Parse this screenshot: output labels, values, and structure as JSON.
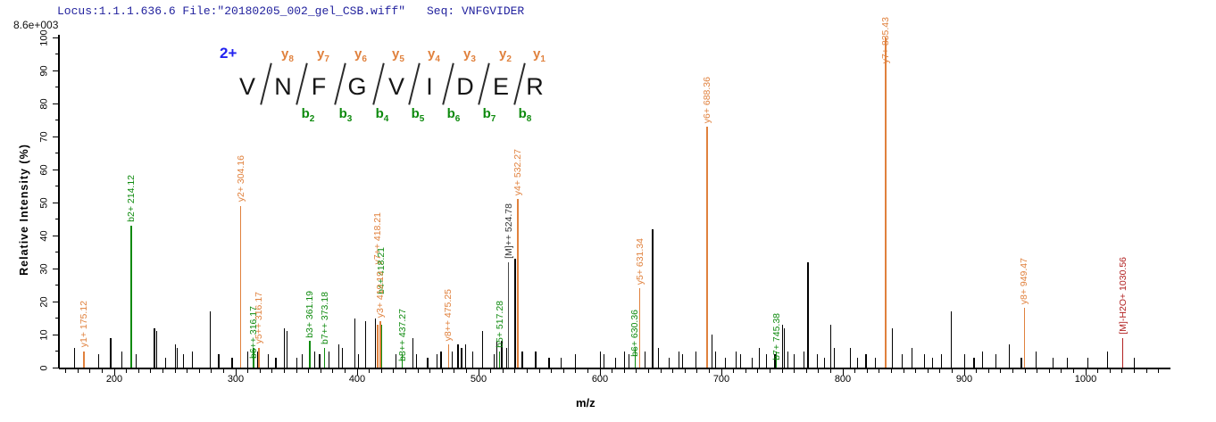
{
  "header": {
    "locus": "Locus:1.1.1.636.6 File:\"20180205_002_gel_CSB.wiff\"",
    "seq": "Seq: VNFGVIDER",
    "max_intensity": "8.6e+003"
  },
  "peptide": {
    "charge": "2+",
    "residues": [
      "V",
      "N",
      "F",
      "G",
      "V",
      "I",
      "D",
      "E",
      "R"
    ],
    "y_ions": [
      "y8",
      "y7",
      "y6",
      "y5",
      "y4",
      "y3",
      "y2",
      "y1"
    ],
    "b_ions": [
      "b2",
      "b3",
      "b4",
      "b5",
      "b6",
      "b7",
      "b8"
    ]
  },
  "axes": {
    "x_label": "m/z",
    "y_label": "Relative Intensity (%)",
    "x_major_ticks": [
      200,
      300,
      400,
      500,
      600,
      700,
      800,
      900,
      1000
    ],
    "x_minor_start": 160,
    "x_minor_end": 1060,
    "x_minor_step": 10,
    "y_major_step": 10,
    "y_minor_step": 5,
    "y_min": 0,
    "y_max": 100
  },
  "colors": {
    "y_ion": "#E0813D",
    "b_ion": "#0E8A0E",
    "precursor": "#4A4A4A",
    "precursor_label": "#333333",
    "precursor_loss": "#B22222",
    "peak": "#000000",
    "header_text": "#22229E",
    "charge_blue": "#2222F0",
    "residue": "#161616"
  },
  "chart_data": {
    "type": "bar",
    "xlabel": "m/z",
    "ylabel": "Relative Intensity (%)",
    "xlim": [
      155,
      1068
    ],
    "ylim": [
      0,
      100
    ],
    "base_peak_intensity": "8.6e+003",
    "precursor_charge": "2+",
    "sequence": "VNFGVIDER",
    "labeled_peaks": [
      {
        "mz": 175.12,
        "intensity": 5,
        "label": "y1+ 175.12",
        "ion": "y"
      },
      {
        "mz": 214.12,
        "intensity": 43,
        "label": "b2+ 214.12",
        "ion": "b"
      },
      {
        "mz": 304.16,
        "intensity": 49,
        "label": "y2+ 304.16",
        "ion": "y"
      },
      {
        "mz": 316.17,
        "intensity": 6,
        "label": "b6++ 316.17",
        "ion": "b",
        "dx": -2,
        "lift": -16
      },
      {
        "mz": 316.17,
        "intensity": 6,
        "label": "y5++ 316.17",
        "ion": "y",
        "dx": 4
      },
      {
        "mz": 361.19,
        "intensity": 8,
        "label": "b3+ 361.19",
        "ion": "b"
      },
      {
        "mz": 373.18,
        "intensity": 6,
        "label": "b7++ 373.18",
        "ion": "b"
      },
      {
        "mz": 418.21,
        "intensity": 13,
        "label": "y7++ 418.21",
        "ion": "y",
        "dx": -2,
        "lift": 64
      },
      {
        "mz": 418.21,
        "intensity": 13,
        "label": "b4+ 418.21",
        "ion": "b",
        "dx": 2,
        "lift": 30
      },
      {
        "mz": 419.19,
        "intensity": 14,
        "label": "y3+ 419.19",
        "ion": "y"
      },
      {
        "mz": 437.27,
        "intensity": 4,
        "label": "b8++ 437.27",
        "ion": "b",
        "lift": -12
      },
      {
        "mz": 475.25,
        "intensity": 7,
        "label": "y8++ 475.25",
        "ion": "y"
      },
      {
        "mz": 517.28,
        "intensity": 5,
        "label": "b5+ 517.28",
        "ion": "b"
      },
      {
        "mz": 524.78,
        "intensity": 32,
        "label": "[M]++ 524.78",
        "ion": "M"
      },
      {
        "mz": 532.27,
        "intensity": 51,
        "label": "y4+ 532.27",
        "ion": "y"
      },
      {
        "mz": 630.36,
        "intensity": 6,
        "label": "b6+ 630.36",
        "ion": "b",
        "dx": -2,
        "lift": -14
      },
      {
        "mz": 631.34,
        "intensity": 24,
        "label": "y5+ 631.34",
        "ion": "y",
        "dx": 2
      },
      {
        "mz": 688.36,
        "intensity": 73,
        "label": "y6+ 688.36",
        "ion": "y"
      },
      {
        "mz": 745.38,
        "intensity": 5,
        "label": "b7+ 745.38",
        "ion": "b",
        "lift": -14
      },
      {
        "mz": 835.43,
        "intensity": 100,
        "label": "y7+ 835.43",
        "ion": "y"
      },
      {
        "mz": 949.47,
        "intensity": 18,
        "label": "y8+ 949.47",
        "ion": "y"
      },
      {
        "mz": 1030.56,
        "intensity": 9,
        "label": "[M]-H2O+ 1030.56",
        "ion": "MH2O"
      }
    ],
    "unlabeled_peaks": [
      [
        167,
        6
      ],
      [
        187,
        4
      ],
      [
        197,
        9
      ],
      [
        206,
        5
      ],
      [
        218,
        4
      ],
      [
        233,
        12
      ],
      [
        235,
        11
      ],
      [
        242,
        3
      ],
      [
        250,
        7
      ],
      [
        252,
        6
      ],
      [
        257,
        4
      ],
      [
        264,
        5
      ],
      [
        279,
        17
      ],
      [
        286,
        4
      ],
      [
        297,
        3
      ],
      [
        310,
        5
      ],
      [
        318,
        5
      ],
      [
        327,
        4
      ],
      [
        333,
        3
      ],
      [
        340,
        12
      ],
      [
        342,
        11
      ],
      [
        350,
        3
      ],
      [
        355,
        4
      ],
      [
        365,
        5
      ],
      [
        369,
        4
      ],
      [
        377,
        5
      ],
      [
        385,
        7
      ],
      [
        388,
        6
      ],
      [
        398,
        15
      ],
      [
        401,
        4
      ],
      [
        407,
        14
      ],
      [
        415,
        15
      ],
      [
        417,
        13
      ],
      [
        432,
        4
      ],
      [
        446,
        9
      ],
      [
        449,
        4
      ],
      [
        458,
        3
      ],
      [
        466,
        4
      ],
      [
        469,
        5
      ],
      [
        478,
        5
      ],
      [
        483,
        7
      ],
      [
        486,
        6
      ],
      [
        489,
        7
      ],
      [
        495,
        5
      ],
      [
        503,
        11
      ],
      [
        513,
        4
      ],
      [
        515,
        8
      ],
      [
        519,
        8
      ],
      [
        523,
        6
      ],
      [
        530,
        33
      ],
      [
        536,
        5
      ],
      [
        547,
        5
      ],
      [
        558,
        3
      ],
      [
        568,
        3
      ],
      [
        580,
        4
      ],
      [
        600,
        5
      ],
      [
        603,
        4
      ],
      [
        613,
        3
      ],
      [
        620,
        5
      ],
      [
        624,
        4
      ],
      [
        637,
        5
      ],
      [
        643,
        42
      ],
      [
        648,
        6
      ],
      [
        657,
        3
      ],
      [
        665,
        5
      ],
      [
        668,
        4
      ],
      [
        679,
        5
      ],
      [
        692,
        10
      ],
      [
        695,
        5
      ],
      [
        703,
        3
      ],
      [
        712,
        5
      ],
      [
        716,
        4
      ],
      [
        725,
        3
      ],
      [
        731,
        6
      ],
      [
        737,
        4
      ],
      [
        744,
        4
      ],
      [
        750,
        13
      ],
      [
        752,
        12
      ],
      [
        755,
        5
      ],
      [
        760,
        4
      ],
      [
        768,
        5
      ],
      [
        771,
        32
      ],
      [
        779,
        4
      ],
      [
        785,
        3
      ],
      [
        790,
        13
      ],
      [
        793,
        6
      ],
      [
        806,
        6
      ],
      [
        812,
        3
      ],
      [
        819,
        4
      ],
      [
        827,
        3
      ],
      [
        841,
        12
      ],
      [
        849,
        4
      ],
      [
        857,
        6
      ],
      [
        867,
        4
      ],
      [
        874,
        3
      ],
      [
        881,
        4
      ],
      [
        889,
        17
      ],
      [
        900,
        4
      ],
      [
        908,
        3
      ],
      [
        915,
        5
      ],
      [
        926,
        4
      ],
      [
        937,
        7
      ],
      [
        947,
        3
      ],
      [
        959,
        5
      ],
      [
        973,
        3
      ],
      [
        985,
        3
      ],
      [
        1002,
        3
      ],
      [
        1018,
        5
      ],
      [
        1040,
        3
      ]
    ]
  }
}
